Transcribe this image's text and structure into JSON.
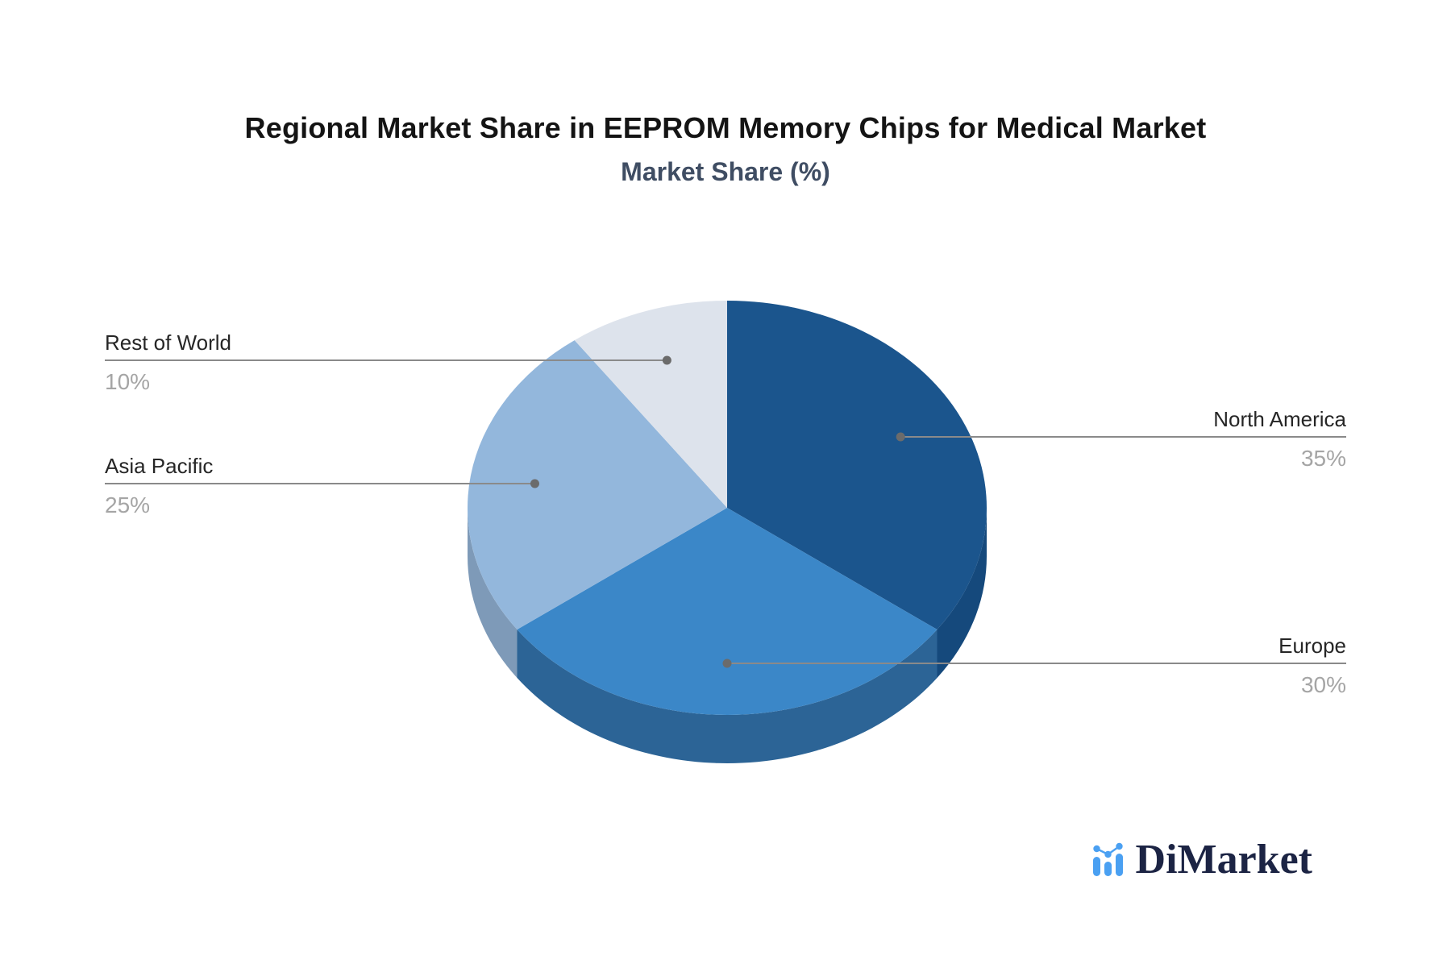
{
  "header": {
    "title": "Regional Market Share in EEPROM Memory Chips for Medical Market",
    "subtitle": "Market Share (%)"
  },
  "chart_data": {
    "type": "pie",
    "title": "Regional Market Share in EEPROM Memory Chips for Medical Market",
    "subtitle": "Market Share (%)",
    "unit": "%",
    "effect_3d": true,
    "direction": "clockwise",
    "start_angle_deg": 0,
    "categories": [
      "North America",
      "Europe",
      "Asia Pacific",
      "Rest of World"
    ],
    "values": [
      35,
      30,
      25,
      10
    ],
    "labels": [
      "35%",
      "30%",
      "25%",
      "10%"
    ],
    "colors": [
      "#1b558d",
      "#3b87c8",
      "#93b7dc",
      "#dde3ec"
    ],
    "side_colors": [
      "#15497c",
      "#2c6496",
      "#7e9ab8",
      "#b9c4d6"
    ],
    "label_sides": [
      "right",
      "right",
      "left",
      "left"
    ],
    "legend_position": "none",
    "grid": false
  },
  "style_colors": {
    "title_color": "#141414",
    "subtitle_color": "#3f4d63",
    "label_name_color": "#262626",
    "label_pct_color": "#a5a5a5",
    "leader_line_color": "#8a8a8a",
    "leader_dot_color": "#6b6b6b"
  },
  "branding": {
    "logo_text": "DiMarket",
    "logo_icon": "bar-line-chart-icon",
    "icon_color": "#4aa0f2",
    "text_color": "#1c2444"
  }
}
